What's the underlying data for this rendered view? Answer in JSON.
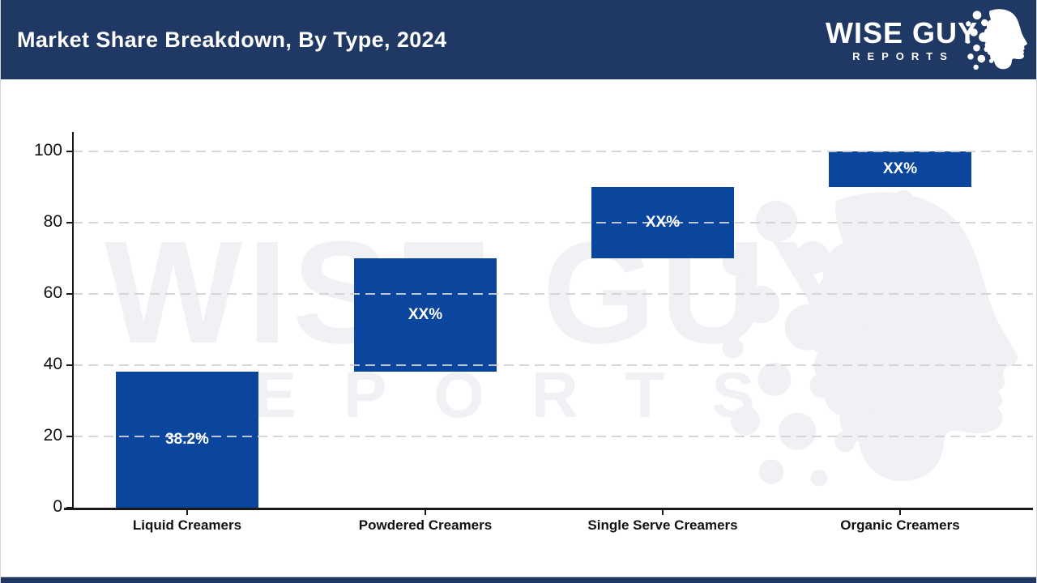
{
  "header": {
    "title": "Market Share Breakdown, By Type, 2024",
    "background_color": "#1f3864",
    "logo": {
      "line1": "WISE GUY",
      "line2": "REPORTS"
    }
  },
  "watermark": {
    "line1": "WISE GUY",
    "line2": "REPORTS"
  },
  "chart_data": {
    "type": "bar",
    "subtype": "floating-segment (waterfall-style market share)",
    "title": "Market Share Breakdown, By Type, 2024",
    "categories": [
      "Liquid Creamers",
      "Powdered Creamers",
      "Single Serve Creamers",
      "Organic Creamers"
    ],
    "segments": [
      {
        "category": "Liquid Creamers",
        "start": 0,
        "end": 38.2,
        "label": "38.2%"
      },
      {
        "category": "Powdered Creamers",
        "start": 38.2,
        "end": 70,
        "label": "XX%"
      },
      {
        "category": "Single Serve Creamers",
        "start": 70,
        "end": 90,
        "label": "XX%"
      },
      {
        "category": "Organic Creamers",
        "start": 90,
        "end": 100,
        "label": "XX%"
      }
    ],
    "xlabel": "",
    "ylabel": "",
    "ylim": [
      0,
      100
    ],
    "yticks": [
      0,
      20,
      40,
      60,
      80,
      100
    ],
    "grid": "horizontal dashed, drawn above bars",
    "legend": "none",
    "bar_color": "#0a459e",
    "bar_label_color": "#ffffff",
    "grid_color": "#d2d2d2",
    "axis_color": "#1a1a1a"
  }
}
